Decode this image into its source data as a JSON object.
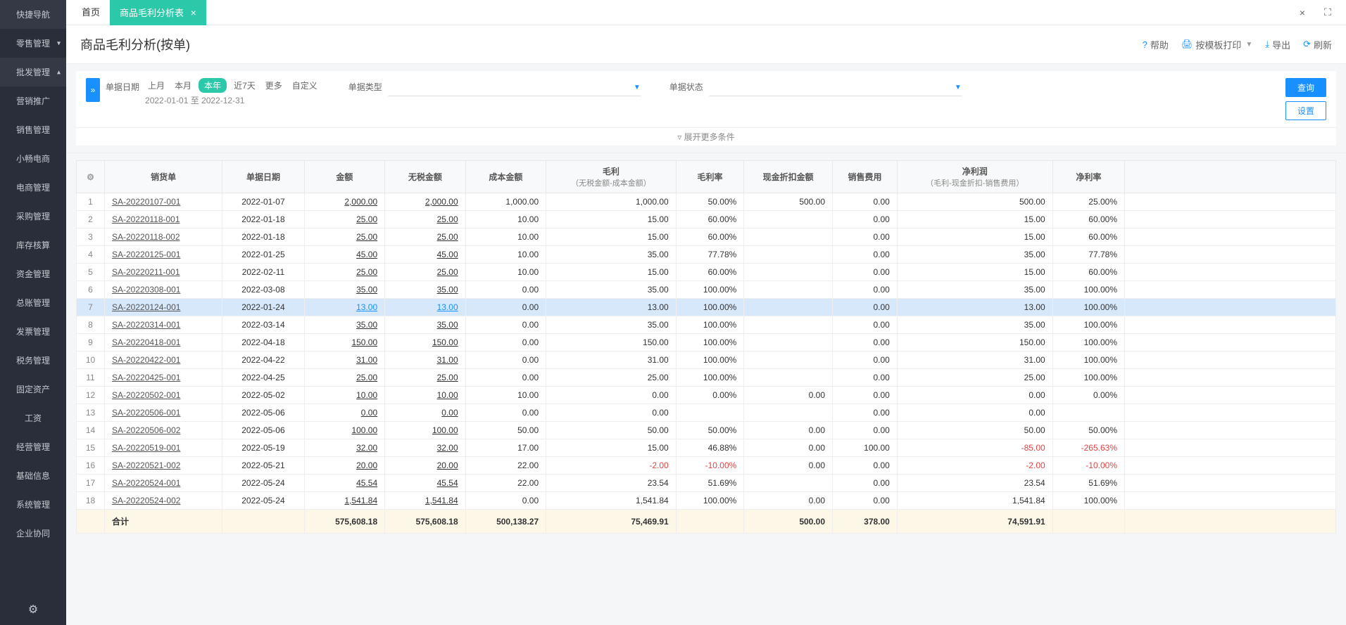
{
  "sidebar": {
    "items": [
      {
        "label": "快捷导航",
        "caret": false
      },
      {
        "label": "零售管理",
        "caret": true,
        "dir": "down"
      },
      {
        "label": "批发管理",
        "caret": true,
        "dir": "up",
        "active": true
      },
      {
        "label": "营销推广",
        "caret": false,
        "indent": true
      },
      {
        "label": "销售管理",
        "caret": false,
        "indent": true
      },
      {
        "label": "小畅电商",
        "caret": false
      },
      {
        "label": "电商管理",
        "caret": false
      },
      {
        "label": "采购管理",
        "caret": false
      },
      {
        "label": "库存核算",
        "caret": false
      },
      {
        "label": "资金管理",
        "caret": false
      },
      {
        "label": "总账管理",
        "caret": false
      },
      {
        "label": "发票管理",
        "caret": false
      },
      {
        "label": "税务管理",
        "caret": false
      },
      {
        "label": "固定资产",
        "caret": false
      },
      {
        "label": "工资",
        "caret": false
      },
      {
        "label": "经营管理",
        "caret": false
      },
      {
        "label": "基础信息",
        "caret": false
      },
      {
        "label": "系统管理",
        "caret": false
      },
      {
        "label": "企业协同",
        "caret": false
      }
    ]
  },
  "tabs": {
    "home": "首页",
    "active": "商品毛利分析表"
  },
  "page_title": "商品毛利分析(按单)",
  "header_actions": {
    "help": "帮助",
    "print": "按模板打印",
    "export": "导出",
    "refresh": "刷新"
  },
  "filters": {
    "date_label": "单据日期",
    "presets": [
      "上月",
      "本月",
      "本年",
      "近7天",
      "更多",
      "自定义"
    ],
    "preset_active": "本年",
    "date_range": "2022-01-01 至 2022-12-31",
    "type_label": "单据类型",
    "status_label": "单据状态",
    "query_btn": "查询",
    "settings_btn": "设置",
    "expand": "展开更多条件"
  },
  "table": {
    "columns": [
      {
        "key": "idx",
        "label": ""
      },
      {
        "key": "order",
        "label": "销货单"
      },
      {
        "key": "date",
        "label": "单据日期"
      },
      {
        "key": "amount",
        "label": "金额"
      },
      {
        "key": "notax",
        "label": "无税金额"
      },
      {
        "key": "cost",
        "label": "成本金额"
      },
      {
        "key": "profit",
        "label": "毛利",
        "sub": "（无税金额-成本金额）"
      },
      {
        "key": "prate",
        "label": "毛利率"
      },
      {
        "key": "cashdisc",
        "label": "现金折扣金额"
      },
      {
        "key": "salecost",
        "label": "销售费用"
      },
      {
        "key": "netprofit",
        "label": "净利润",
        "sub": "（毛利-现金折扣-销售费用）"
      },
      {
        "key": "netrate",
        "label": "净利率"
      }
    ],
    "rows": [
      {
        "idx": 1,
        "order": "SA-20220107-001",
        "date": "2022-01-07",
        "amount": "2,000.00",
        "notax": "2,000.00",
        "cost": "1,000.00",
        "profit": "1,000.00",
        "prate": "50.00%",
        "cashdisc": "500.00",
        "salecost": "0.00",
        "netprofit": "500.00",
        "netrate": "25.00%"
      },
      {
        "idx": 2,
        "order": "SA-20220118-001",
        "date": "2022-01-18",
        "amount": "25.00",
        "notax": "25.00",
        "cost": "10.00",
        "profit": "15.00",
        "prate": "60.00%",
        "cashdisc": "",
        "salecost": "0.00",
        "netprofit": "15.00",
        "netrate": "60.00%"
      },
      {
        "idx": 3,
        "order": "SA-20220118-002",
        "date": "2022-01-18",
        "amount": "25.00",
        "notax": "25.00",
        "cost": "10.00",
        "profit": "15.00",
        "prate": "60.00%",
        "cashdisc": "",
        "salecost": "0.00",
        "netprofit": "15.00",
        "netrate": "60.00%"
      },
      {
        "idx": 4,
        "order": "SA-20220125-001",
        "date": "2022-01-25",
        "amount": "45.00",
        "notax": "45.00",
        "cost": "10.00",
        "profit": "35.00",
        "prate": "77.78%",
        "cashdisc": "",
        "salecost": "0.00",
        "netprofit": "35.00",
        "netrate": "77.78%"
      },
      {
        "idx": 5,
        "order": "SA-20220211-001",
        "date": "2022-02-11",
        "amount": "25.00",
        "notax": "25.00",
        "cost": "10.00",
        "profit": "15.00",
        "prate": "60.00%",
        "cashdisc": "",
        "salecost": "0.00",
        "netprofit": "15.00",
        "netrate": "60.00%"
      },
      {
        "idx": 6,
        "order": "SA-20220308-001",
        "date": "2022-03-08",
        "amount": "35.00",
        "notax": "35.00",
        "cost": "0.00",
        "profit": "35.00",
        "prate": "100.00%",
        "cashdisc": "",
        "salecost": "0.00",
        "netprofit": "35.00",
        "netrate": "100.00%"
      },
      {
        "idx": 7,
        "order": "SA-20220124-001",
        "date": "2022-01-24",
        "amount": "13.00",
        "notax": "13.00",
        "cost": "0.00",
        "profit": "13.00",
        "prate": "100.00%",
        "cashdisc": "",
        "salecost": "0.00",
        "netprofit": "13.00",
        "netrate": "100.00%",
        "highlight": true
      },
      {
        "idx": 8,
        "order": "SA-20220314-001",
        "date": "2022-03-14",
        "amount": "35.00",
        "notax": "35.00",
        "cost": "0.00",
        "profit": "35.00",
        "prate": "100.00%",
        "cashdisc": "",
        "salecost": "0.00",
        "netprofit": "35.00",
        "netrate": "100.00%"
      },
      {
        "idx": 9,
        "order": "SA-20220418-001",
        "date": "2022-04-18",
        "amount": "150.00",
        "notax": "150.00",
        "cost": "0.00",
        "profit": "150.00",
        "prate": "100.00%",
        "cashdisc": "",
        "salecost": "0.00",
        "netprofit": "150.00",
        "netrate": "100.00%"
      },
      {
        "idx": 10,
        "order": "SA-20220422-001",
        "date": "2022-04-22",
        "amount": "31.00",
        "notax": "31.00",
        "cost": "0.00",
        "profit": "31.00",
        "prate": "100.00%",
        "cashdisc": "",
        "salecost": "0.00",
        "netprofit": "31.00",
        "netrate": "100.00%"
      },
      {
        "idx": 11,
        "order": "SA-20220425-001",
        "date": "2022-04-25",
        "amount": "25.00",
        "notax": "25.00",
        "cost": "0.00",
        "profit": "25.00",
        "prate": "100.00%",
        "cashdisc": "",
        "salecost": "0.00",
        "netprofit": "25.00",
        "netrate": "100.00%"
      },
      {
        "idx": 12,
        "order": "SA-20220502-001",
        "date": "2022-05-02",
        "amount": "10.00",
        "notax": "10.00",
        "cost": "10.00",
        "profit": "0.00",
        "prate": "0.00%",
        "cashdisc": "0.00",
        "salecost": "0.00",
        "netprofit": "0.00",
        "netrate": "0.00%"
      },
      {
        "idx": 13,
        "order": "SA-20220506-001",
        "date": "2022-05-06",
        "amount": "0.00",
        "notax": "0.00",
        "cost": "0.00",
        "profit": "0.00",
        "prate": "",
        "cashdisc": "",
        "salecost": "0.00",
        "netprofit": "0.00",
        "netrate": ""
      },
      {
        "idx": 14,
        "order": "SA-20220506-002",
        "date": "2022-05-06",
        "amount": "100.00",
        "notax": "100.00",
        "cost": "50.00",
        "profit": "50.00",
        "prate": "50.00%",
        "cashdisc": "0.00",
        "salecost": "0.00",
        "netprofit": "50.00",
        "netrate": "50.00%"
      },
      {
        "idx": 15,
        "order": "SA-20220519-001",
        "date": "2022-05-19",
        "amount": "32.00",
        "notax": "32.00",
        "cost": "17.00",
        "profit": "15.00",
        "prate": "46.88%",
        "cashdisc": "0.00",
        "salecost": "100.00",
        "netprofit": "-85.00",
        "netrate": "-265.63%",
        "neg": true
      },
      {
        "idx": 16,
        "order": "SA-20220521-002",
        "date": "2022-05-21",
        "amount": "20.00",
        "notax": "20.00",
        "cost": "22.00",
        "profit": "-2.00",
        "prate": "-10.00%",
        "cashdisc": "0.00",
        "salecost": "0.00",
        "netprofit": "-2.00",
        "netrate": "-10.00%",
        "neg": true,
        "negProfit": true
      },
      {
        "idx": 17,
        "order": "SA-20220524-001",
        "date": "2022-05-24",
        "amount": "45.54",
        "notax": "45.54",
        "cost": "22.00",
        "profit": "23.54",
        "prate": "51.69%",
        "cashdisc": "",
        "salecost": "0.00",
        "netprofit": "23.54",
        "netrate": "51.69%"
      },
      {
        "idx": 18,
        "order": "SA-20220524-002",
        "date": "2022-05-24",
        "amount": "1,541.84",
        "notax": "1,541.84",
        "cost": "0.00",
        "profit": "1,541.84",
        "prate": "100.00%",
        "cashdisc": "0.00",
        "salecost": "0.00",
        "netprofit": "1,541.84",
        "netrate": "100.00%"
      }
    ],
    "footer": {
      "label": "合计",
      "amount": "575,608.18",
      "notax": "575,608.18",
      "cost": "500,138.27",
      "profit": "75,469.91",
      "cashdisc": "500.00",
      "salecost": "378.00",
      "netprofit": "74,591.91"
    }
  }
}
